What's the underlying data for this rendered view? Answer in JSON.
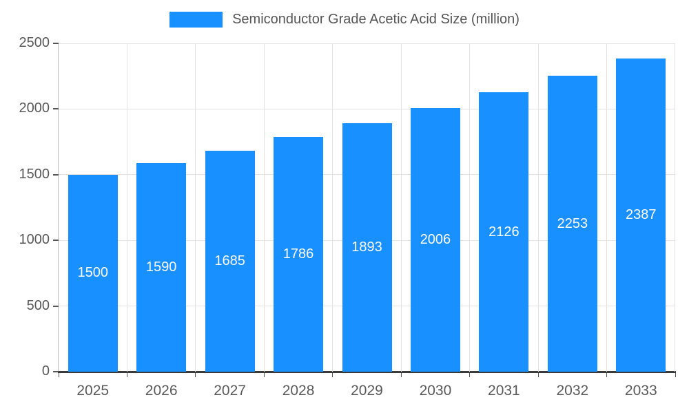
{
  "legend": {
    "label": "Semiconductor Grade Acetic Acid Size (million)",
    "swatch_color": "#1890ff"
  },
  "chart_data": {
    "type": "bar",
    "title": "Semiconductor Grade Acetic Acid Size (million)",
    "categories": [
      "2025",
      "2026",
      "2027",
      "2028",
      "2029",
      "2030",
      "2031",
      "2032",
      "2033"
    ],
    "values": [
      1500,
      1590,
      1685,
      1786,
      1893,
      2006,
      2126,
      2253,
      2387
    ],
    "xlabel": "",
    "ylabel": "",
    "ylim": [
      0,
      2500
    ],
    "yticks": [
      0,
      500,
      1000,
      1500,
      2000,
      2500
    ],
    "grid": true,
    "legend_position": "top",
    "bar_color": "#1890ff",
    "value_label_color": "#ffffff"
  }
}
